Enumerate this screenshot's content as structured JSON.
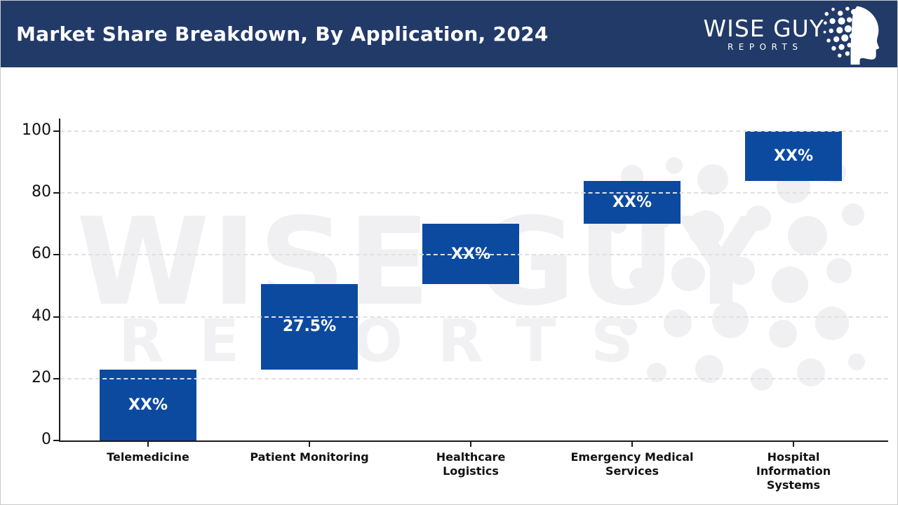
{
  "header": {
    "title": "Market Share Breakdown, By Application, 2024",
    "bg_color": "#223a68",
    "logo": {
      "wordmark": "WISE GUY",
      "subtext": "REPORTS"
    }
  },
  "watermark": {
    "wordmark": "WISE GUY",
    "subtext": "REPORTS"
  },
  "chart_data": {
    "type": "bar",
    "subtype": "waterfall-floating-bars",
    "title": "Market Share Breakdown, By Application, 2024",
    "xlabel": "",
    "ylabel": "",
    "ylim": [
      0,
      100
    ],
    "yticks": [
      0,
      20,
      40,
      60,
      80,
      100
    ],
    "grid": true,
    "grid_style": "horizontal-dashed-drawn-over-bars",
    "legend": "none",
    "bar_color": "#0c4aa0",
    "bar_label_color": "#ffffff",
    "categories": [
      "Telemedicine",
      "Patient Monitoring",
      "Healthcare Logistics",
      "Emergency Medical Services",
      "Hospital Information Systems"
    ],
    "bars": [
      {
        "category_lines": [
          "Telemedicine"
        ],
        "start": 0,
        "end": 23,
        "value": 23,
        "label": "XX%"
      },
      {
        "category_lines": [
          "Patient Monitoring"
        ],
        "start": 23,
        "end": 50.5,
        "value": 27.5,
        "label": "27.5%"
      },
      {
        "category_lines": [
          "Healthcare",
          "Logistics"
        ],
        "start": 50.5,
        "end": 70,
        "value": 19.5,
        "label": "XX%"
      },
      {
        "category_lines": [
          "Emergency Medical",
          "Services"
        ],
        "start": 70,
        "end": 84,
        "value": 14,
        "label": "XX%"
      },
      {
        "category_lines": [
          "Hospital",
          "Information",
          "Systems"
        ],
        "start": 84,
        "end": 100,
        "value": 16,
        "label": "XX%"
      }
    ]
  }
}
